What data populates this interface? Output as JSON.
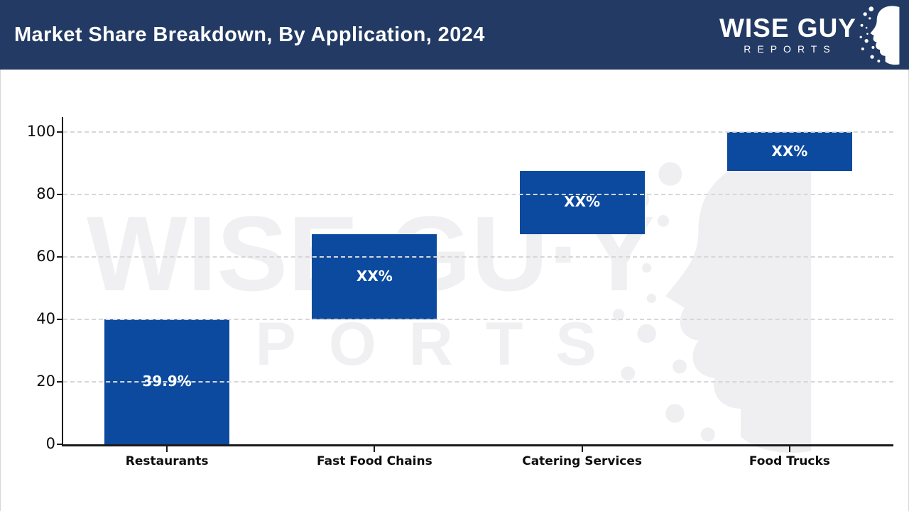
{
  "header": {
    "title": "Market Share Breakdown, By Application, 2024",
    "bg_color": "#223a64",
    "logo": {
      "line1": "WISE GUY",
      "line2": "REPORTS"
    }
  },
  "watermark": {
    "line1": "WISE GU·Y",
    "line2": "REPORTS"
  },
  "chart_data": {
    "type": "bar",
    "subtype": "floating-waterfall",
    "title": "Market Share Breakdown, By Application, 2024",
    "categories": [
      "Restaurants",
      "Fast Food Chains",
      "Catering Services",
      "Food Trucks"
    ],
    "segments": [
      {
        "category": "Restaurants",
        "start": 0,
        "end": 39.9,
        "label": "39.9%"
      },
      {
        "category": "Fast Food Chains",
        "start": 39.9,
        "end": 67.3,
        "label": "XX%"
      },
      {
        "category": "Catering Services",
        "start": 67.3,
        "end": 87.5,
        "label": "XX%"
      },
      {
        "category": "Food Trucks",
        "start": 87.5,
        "end": 100,
        "label": "XX%"
      }
    ],
    "values_pct": [
      39.9,
      27.4,
      20.2,
      12.5
    ],
    "yticks": [
      0,
      20,
      40,
      60,
      80,
      100
    ],
    "ylim": [
      0,
      105
    ],
    "xlabel": "",
    "ylabel": "",
    "grid": "horizontal-dashed",
    "legend": "none",
    "bar_color": "#0b4a9e"
  }
}
